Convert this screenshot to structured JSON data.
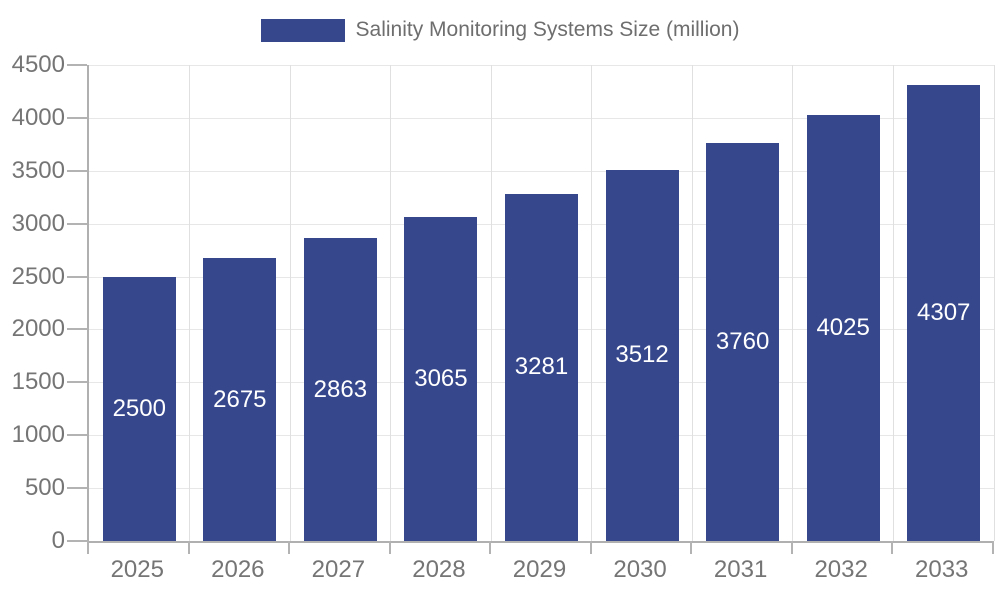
{
  "chart_data": {
    "type": "bar",
    "title": "Salinity Monitoring Systems Size (million)",
    "categories": [
      "2025",
      "2026",
      "2027",
      "2028",
      "2029",
      "2030",
      "2031",
      "2032",
      "2033"
    ],
    "series": [
      {
        "name": "Salinity Monitoring Systems Size (million)",
        "values": [
          2500,
          2675,
          2863,
          3065,
          3281,
          3512,
          3760,
          4025,
          4307
        ],
        "color": "#36478C"
      }
    ],
    "xlabel": "",
    "ylabel": "",
    "ylim": [
      0,
      4500
    ],
    "yticks": [
      0,
      500,
      1000,
      1500,
      2000,
      2500,
      3000,
      3500,
      4000,
      4500
    ],
    "grid": true,
    "legend_position": "top",
    "bar_label_color": "#FFFFFF",
    "axis_text_color": "#757575"
  }
}
